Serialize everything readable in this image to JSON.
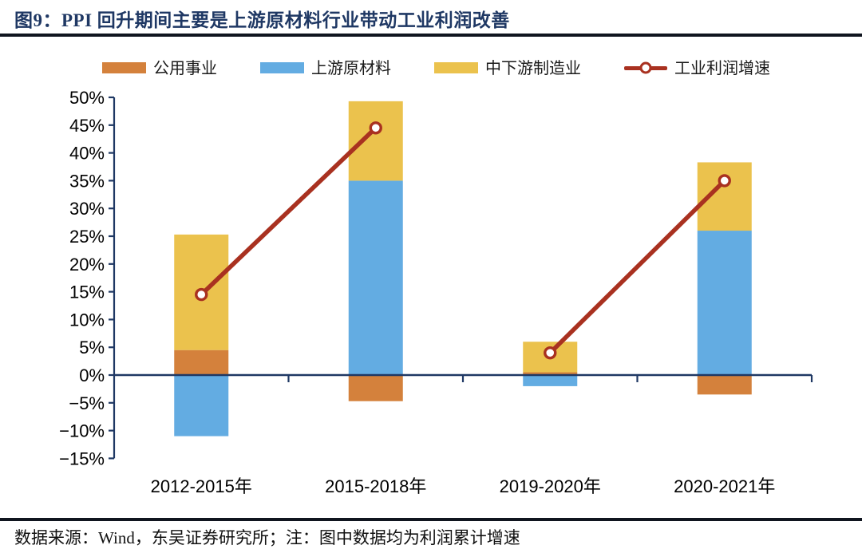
{
  "header": {
    "title": "图9：PPI 回升期间主要是上游原材料行业带动工业利润改善"
  },
  "footer": {
    "note": "数据来源：Wind，东吴证券研究所；注：图中数据均为利润累计增速"
  },
  "colors": {
    "title_navy": "#1F3864",
    "axis_navy": "#1F3864",
    "divider": "#10151f",
    "utilities_orange": "#D4813C",
    "upstream_blue": "#63ACE2",
    "downstream_yellow": "#EBC24D",
    "profit_line_red": "#A93120",
    "background": "#ffffff"
  },
  "chart_data": {
    "type": "bar",
    "subtype": "stacked-bar-with-line-overlay",
    "title": "图9：PPI 回升期间主要是上游原材料行业带动工业利润改善",
    "categories": [
      "2012-2015年",
      "2015-2018年",
      "2019-2020年",
      "2020-2021年"
    ],
    "series": [
      {
        "name": "公用事业",
        "type": "bar",
        "color": "#D4813C",
        "values": [
          4.5,
          -4.7,
          0.5,
          -3.5
        ]
      },
      {
        "name": "上游原材料",
        "type": "bar",
        "color": "#63ACE2",
        "values": [
          -11,
          35,
          -2,
          26
        ]
      },
      {
        "name": "中下游制造业",
        "type": "bar",
        "color": "#EBC24D",
        "values": [
          20.8,
          14.3,
          5.5,
          12.3
        ]
      },
      {
        "name": "工业利润增速",
        "type": "line",
        "color": "#A93120",
        "values": [
          14.5,
          44.5,
          4,
          35
        ],
        "segments": [
          [
            0,
            1
          ],
          [
            2,
            3
          ]
        ],
        "marker": "open-circle"
      }
    ],
    "xlabel": "",
    "ylabel": "",
    "ylim": [
      -15,
      50
    ],
    "ytick_step": 5,
    "yticks": [
      -15,
      -10,
      -5,
      0,
      5,
      10,
      15,
      20,
      25,
      30,
      35,
      40,
      45,
      50
    ],
    "ytick_format": "{v}%",
    "grid": false,
    "legend_position": "top",
    "stacking": "positive-up-negative-down"
  }
}
